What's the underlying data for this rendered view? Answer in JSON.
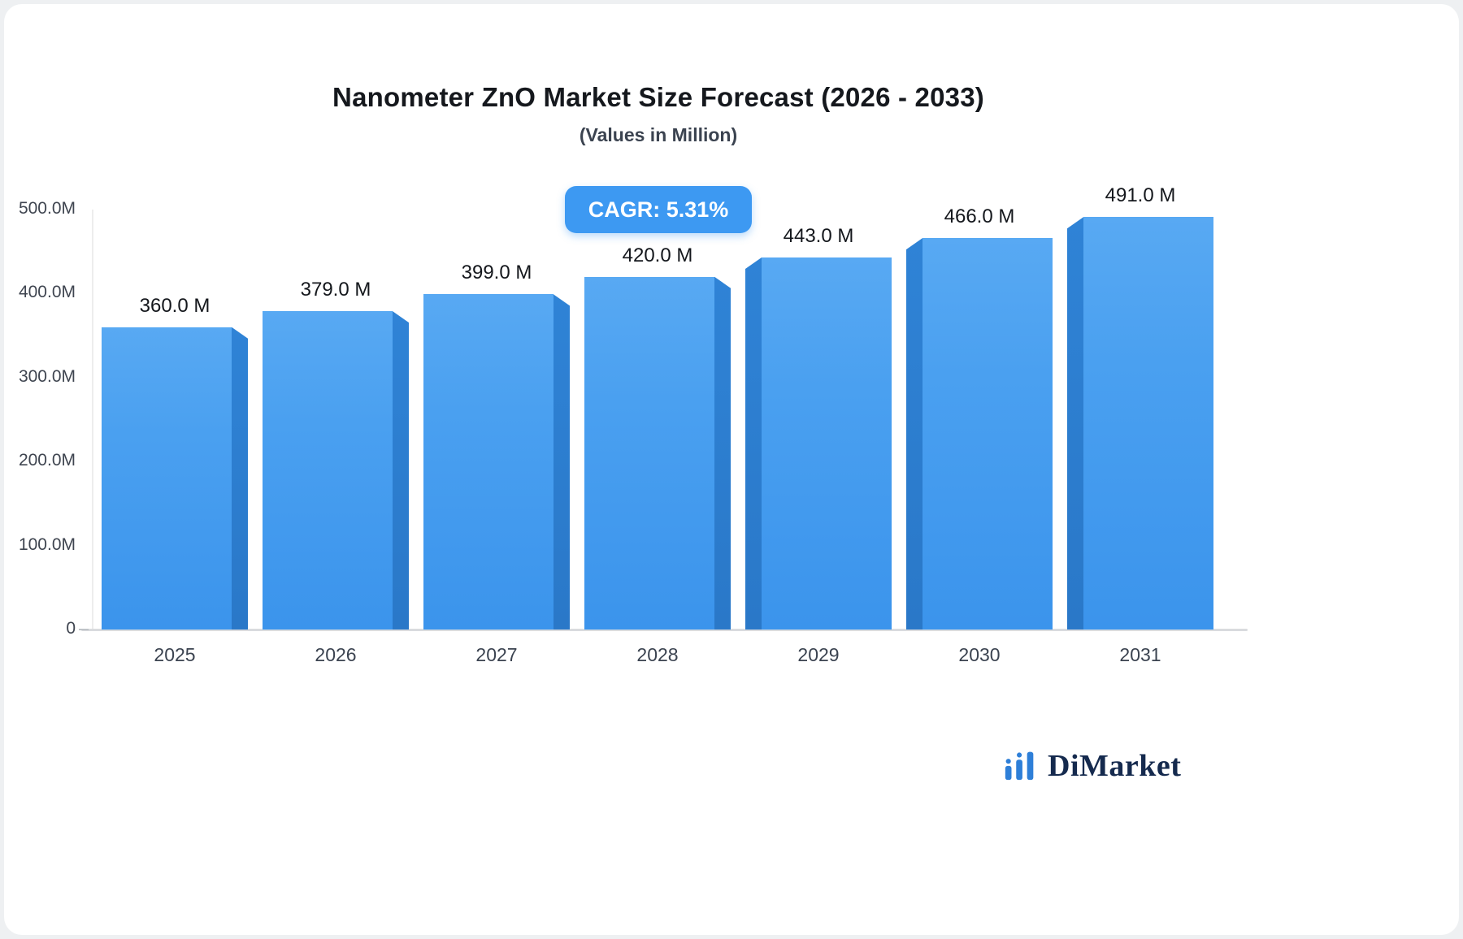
{
  "title": "Nanometer ZnO Market Size Forecast (2026 - 2033)",
  "subtitle": "(Values in Million)",
  "cagr_label": "CAGR: 5.31%",
  "logo": {
    "text": "DiMarket"
  },
  "colors": {
    "bar_main": "#469ef0",
    "bar_side": "#2d80d2",
    "badge": "#3d99f2",
    "logo_icon": "#2e7fd8",
    "logo_text": "#152a4e"
  },
  "chart_data": {
    "type": "bar",
    "title": "Nanometer ZnO Market Size Forecast (2026 - 2033)",
    "subtitle": "(Values in Million)",
    "categories": [
      "2025",
      "2026",
      "2027",
      "2028",
      "2029",
      "2030",
      "2031"
    ],
    "values": [
      360,
      379,
      399,
      420,
      443,
      466,
      491
    ],
    "value_labels": [
      "360.0 M",
      "379.0 M",
      "399.0 M",
      "420.0 M",
      "443.0 M",
      "466.0 M",
      "491.0 M"
    ],
    "xlabel": "",
    "ylabel": "",
    "ylim": [
      0,
      500
    ],
    "grid": false,
    "legend": false,
    "annotation": "CAGR: 5.31%",
    "yticks": [
      {
        "value": 0,
        "label": "0"
      },
      {
        "value": 100,
        "label": "100.0M"
      },
      {
        "value": 200,
        "label": "200.0M"
      },
      {
        "value": 300,
        "label": "300.0M"
      },
      {
        "value": 400,
        "label": "400.0M"
      },
      {
        "value": 500,
        "label": "500.0M"
      }
    ]
  }
}
